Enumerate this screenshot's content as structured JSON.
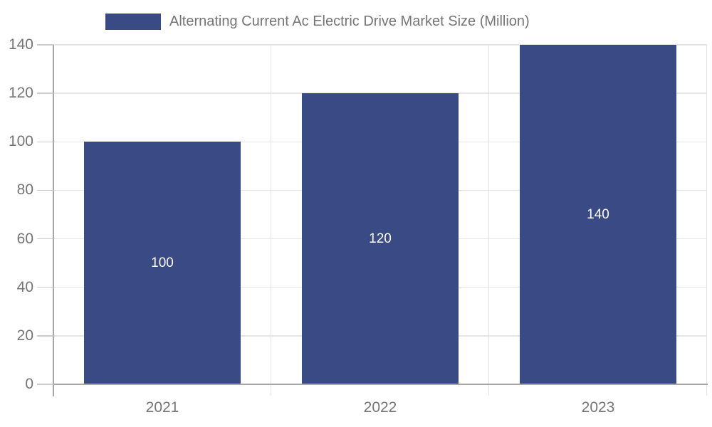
{
  "legend": {
    "label": "Alternating Current Ac Electric Drive Market Size (Million)"
  },
  "chart_data": {
    "type": "bar",
    "title": "Alternating Current Ac Electric Drive Market Size (Million)",
    "categories": [
      "2021",
      "2022",
      "2023"
    ],
    "values": [
      100,
      120,
      140
    ],
    "bar_labels": [
      "100",
      "120",
      "140"
    ],
    "xlabel": "",
    "ylabel": "",
    "ylim": [
      0,
      140
    ],
    "yticks": [
      0,
      20,
      40,
      60,
      80,
      100,
      120,
      140
    ],
    "grid": true,
    "legend_position": "top",
    "colors": {
      "bar": "#3a4a85",
      "bar_label": "#ffffff",
      "axis_line": "#a6a6a6",
      "gridline": "#e5e5e5",
      "tick_mark": "#cccccc",
      "tick_label": "#757575",
      "legend_text": "#757575",
      "background": "#ffffff"
    }
  }
}
